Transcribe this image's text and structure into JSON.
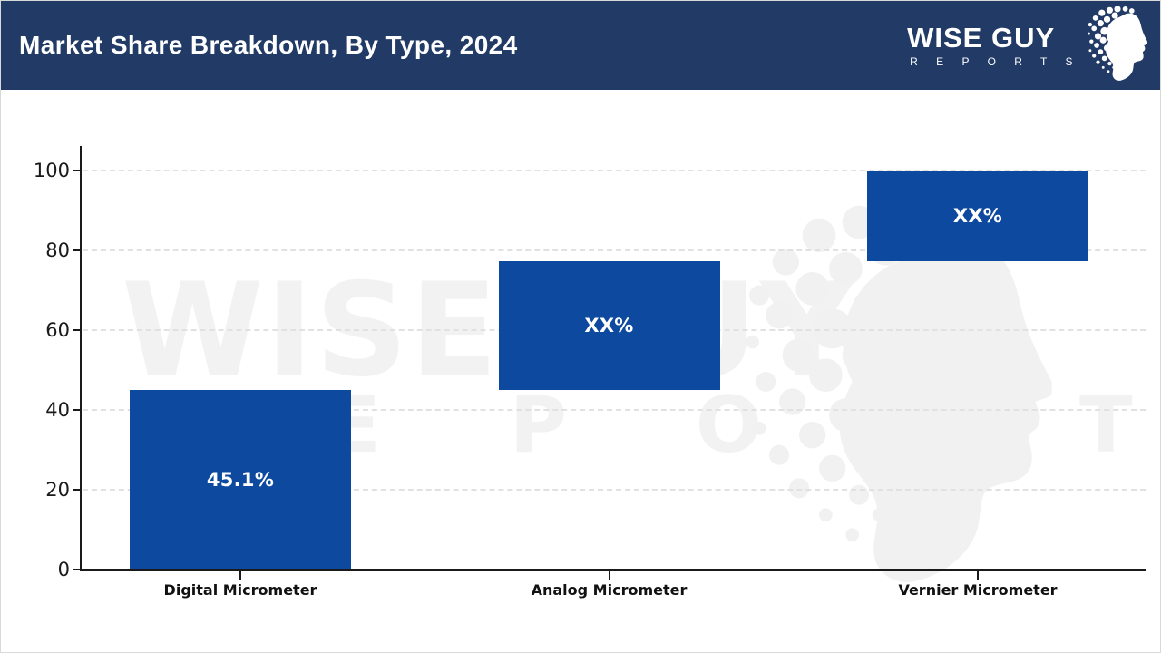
{
  "header": {
    "bg_color": "#213a66",
    "title": "Market Share Breakdown, By Type, 2024",
    "logo": {
      "line1": "WISE GUY",
      "line2": "R E P O R T S"
    }
  },
  "watermark": {
    "line1": "WISE GUY",
    "line2": "R E P O R T S",
    "color": "#f2f2f2"
  },
  "chart_data": {
    "type": "bar",
    "variant": "waterfall-floating-bars",
    "title": "Market Share Breakdown, By Type, 2024",
    "categories": [
      "Digital Micrometer",
      "Analog Micrometer",
      "Vernier Micrometer"
    ],
    "segments": [
      {
        "category": "Digital Micrometer",
        "start": 0,
        "end": 45.1,
        "label": "45.1%"
      },
      {
        "category": "Analog Micrometer",
        "start": 45.1,
        "end": 77.3,
        "label": "XX%"
      },
      {
        "category": "Vernier Micrometer",
        "start": 77.3,
        "end": 100,
        "label": "XX%"
      }
    ],
    "yticks": [
      0,
      20,
      40,
      60,
      80,
      100
    ],
    "ylim": [
      0,
      106
    ],
    "xlabel": "",
    "ylabel": "",
    "bar_color": "#0d4a9f",
    "bar_label_color": "#ffffff",
    "grid": {
      "axis": "y",
      "style": "dashed",
      "color": "#e1e1e1"
    },
    "legend": "none"
  }
}
